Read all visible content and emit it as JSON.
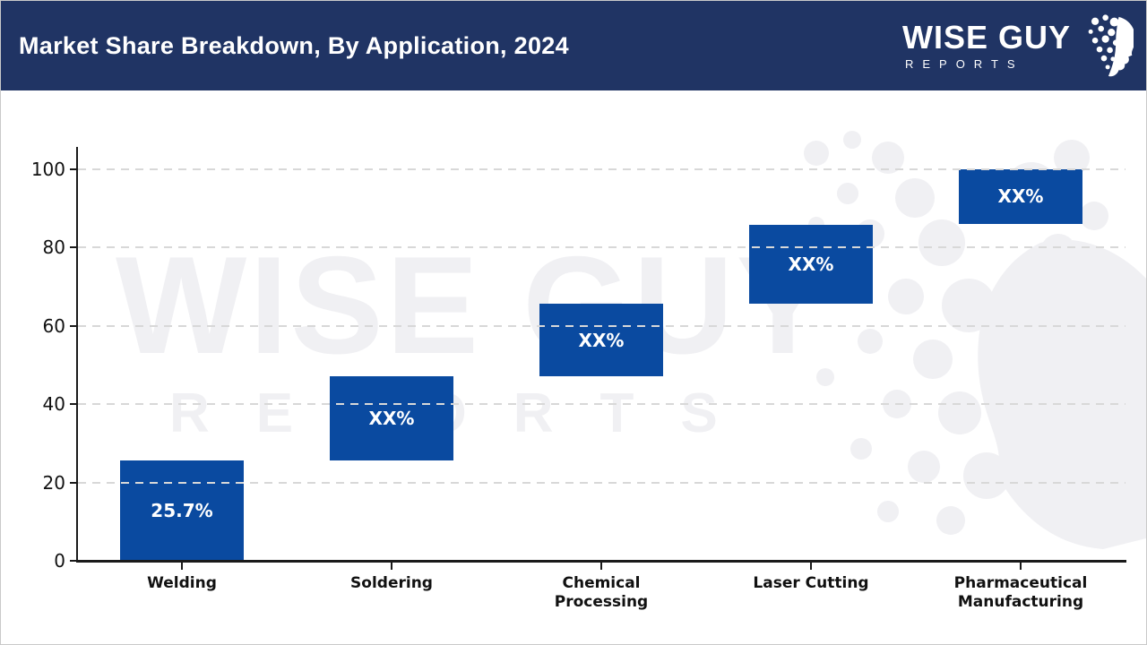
{
  "header": {
    "title": "Market Share Breakdown, By Application, 2024",
    "bg_color": "#203464",
    "brand": {
      "name": "WISE GUY",
      "sub": "REPORTS"
    }
  },
  "watermark": {
    "line1": "WISE GUY",
    "line2": "REPORTS"
  },
  "chart_data": {
    "type": "bar",
    "subtype": "waterfall",
    "title": "Market Share Breakdown, By Application, 2024",
    "categories": [
      "Welding",
      "Soldering",
      "Chemical Processing",
      "Laser Cutting",
      "Pharmaceutical Manufacturing"
    ],
    "category_lines": [
      [
        "Welding"
      ],
      [
        "Soldering"
      ],
      [
        "Chemical",
        "Processing"
      ],
      [
        "Laser Cutting"
      ],
      [
        "Pharmaceutical",
        "Manufacturing"
      ]
    ],
    "segments": [
      {
        "category": "Welding",
        "start": 0,
        "end": 25.7,
        "label": "25.7%"
      },
      {
        "category": "Soldering",
        "start": 25.5,
        "end": 47.0,
        "label": "XX%"
      },
      {
        "category": "Chemical Processing",
        "start": 47.0,
        "end": 65.5,
        "label": "XX%"
      },
      {
        "category": "Laser Cutting",
        "start": 65.6,
        "end": 85.8,
        "label": "XX%"
      },
      {
        "category": "Pharmaceutical Manufacturing",
        "start": 86.0,
        "end": 100.0,
        "label": "XX%"
      }
    ],
    "y_ticks": [
      0,
      20,
      40,
      60,
      80,
      100
    ],
    "ylim": [
      0,
      105
    ],
    "xlabel": "",
    "ylabel": "",
    "bar_color": "#0a4aa0",
    "bar_label_color": "#ffffff",
    "grid": true,
    "grid_style": "dashed",
    "grid_color": "#d8d8d8",
    "legend": "none"
  }
}
